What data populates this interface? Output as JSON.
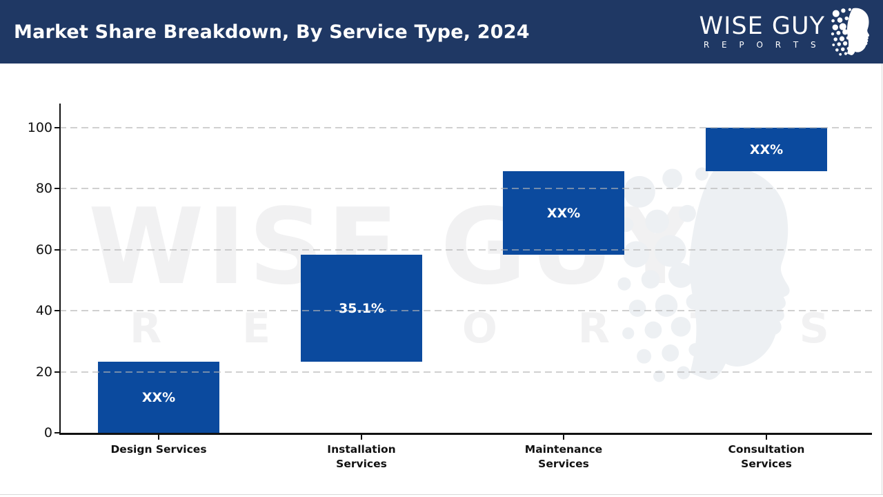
{
  "header": {
    "title": "Market Share Breakdown, By Service Type, 2024",
    "bg_color": "#1f3864",
    "logo": {
      "line1": "WISE GUY",
      "line2": "R E P O R T S"
    }
  },
  "watermark": {
    "line1": "WISE GUY",
    "line2": "R E P O R T S"
  },
  "chart_data": {
    "type": "bar",
    "subtype": "waterfall",
    "title": "Market Share Breakdown, By Service Type, 2024",
    "categories": [
      "Design Services",
      "Installation Services",
      "Maintenance Services",
      "Consultation Services"
    ],
    "category_lines": [
      [
        "Design Services"
      ],
      [
        "Installation",
        "Services"
      ],
      [
        "Maintenance",
        "Services"
      ],
      [
        "Consultation",
        "Services"
      ]
    ],
    "segments": [
      {
        "category": "Design Services",
        "start": 0,
        "end": 23.2,
        "value": 23.2,
        "label": "XX%"
      },
      {
        "category": "Installation Services",
        "start": 23.2,
        "end": 58.3,
        "value": 35.1,
        "label": "35.1%"
      },
      {
        "category": "Maintenance Services",
        "start": 58.3,
        "end": 85.7,
        "value": 27.4,
        "label": "XX%"
      },
      {
        "category": "Consultation Services",
        "start": 85.7,
        "end": 100,
        "value": 14.3,
        "label": "XX%"
      }
    ],
    "values": [
      23.2,
      35.1,
      27.4,
      14.3
    ],
    "yticks": [
      0,
      20,
      40,
      60,
      80,
      100
    ],
    "ylim": [
      0,
      100
    ],
    "xlabel": "",
    "ylabel": "",
    "grid": "horizontal-dashed",
    "legend": "none",
    "bar_color": "#0b4a9e",
    "bar_label_color": "#ffffff",
    "grid_color": "#cecece",
    "axis_color": "#111111"
  }
}
